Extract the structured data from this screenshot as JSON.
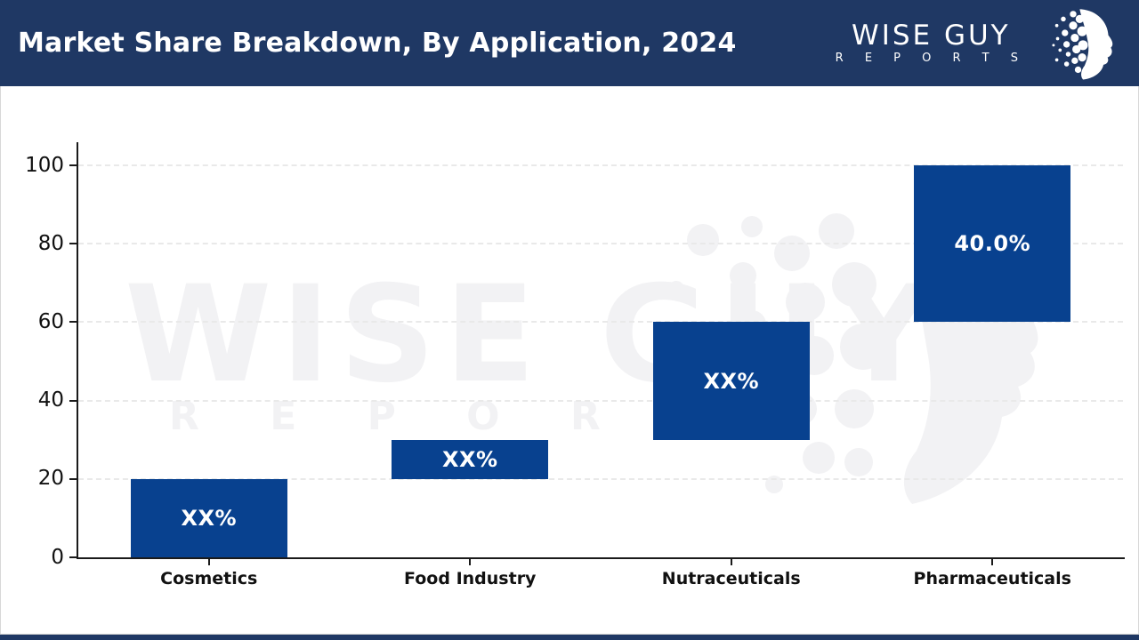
{
  "header": {
    "title": "Market Share Breakdown, By Application, 2024",
    "logo": {
      "line1": "WISE GUY",
      "line2": "R E P O R T S"
    }
  },
  "watermark": {
    "line1": "WISE GUY",
    "line2": "R E P O R T S"
  },
  "chart_data": {
    "type": "bar",
    "subtype": "waterfall",
    "title": "Market Share Breakdown, By Application, 2024",
    "categories": [
      "Cosmetics",
      "Food Industry",
      "Nutraceuticals",
      "Pharmaceuticals"
    ],
    "segments": [
      {
        "category": "Cosmetics",
        "start": 0,
        "end": 20,
        "label": "XX%"
      },
      {
        "category": "Food Industry",
        "start": 20,
        "end": 30,
        "label": "XX%"
      },
      {
        "category": "Nutraceuticals",
        "start": 30,
        "end": 60,
        "label": "XX%"
      },
      {
        "category": "Pharmaceuticals",
        "start": 60,
        "end": 100,
        "label": "40.0%"
      }
    ],
    "yticks": [
      0,
      20,
      40,
      60,
      80,
      100
    ],
    "ylim": [
      0,
      106
    ],
    "xlabel": "",
    "ylabel": "",
    "grid": "horizontal-dashed",
    "legend": "none",
    "bar_color": "#08418f",
    "bar_label_color": "#ffffff",
    "axis_color": "#1a1a1a"
  },
  "colors": {
    "header_bg": "#1F3864",
    "footer_bg": "#1F3864",
    "accent_blue": "#08418f",
    "watermark_gray": "#f2f2f4"
  }
}
